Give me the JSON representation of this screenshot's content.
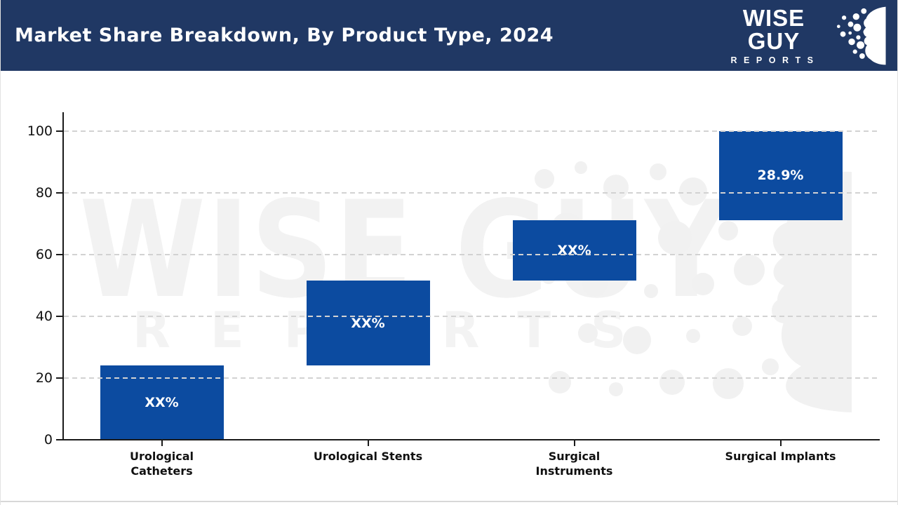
{
  "header": {
    "title": "Market Share Breakdown, By Product Type, 2024",
    "bg_color": "#203864",
    "logo": {
      "line1": "WISE GUY",
      "line2": "REPORTS"
    }
  },
  "watermark": {
    "line1": "WISE GUY",
    "line2": "REPORTS"
  },
  "chart_data": {
    "type": "bar",
    "subtype": "waterfall-stacked-breakdown",
    "title": "Market Share Breakdown, By Product Type, 2024",
    "categories": [
      "Urological Catheters",
      "Urological Stents",
      "Surgical Instruments",
      "Surgical Implants"
    ],
    "category_label_lines": [
      [
        "Urological",
        "Catheters"
      ],
      [
        "Urological Stents"
      ],
      [
        "Surgical",
        "Instruments"
      ],
      [
        "Surgical Implants"
      ]
    ],
    "segments": [
      {
        "category": "Urological Catheters",
        "start": 0,
        "end": 24.0,
        "value": 24.0,
        "label": "XX%"
      },
      {
        "category": "Urological Stents",
        "start": 24.0,
        "end": 51.5,
        "value": 27.5,
        "label": "XX%"
      },
      {
        "category": "Surgical Instruments",
        "start": 51.5,
        "end": 71.1,
        "value": 19.6,
        "label": "XX%"
      },
      {
        "category": "Surgical Implants",
        "start": 71.1,
        "end": 100.0,
        "value": 28.9,
        "label": "28.9%"
      }
    ],
    "yticks": [
      0,
      20,
      40,
      60,
      80,
      100
    ],
    "ylim": [
      0,
      106
    ],
    "xlabel": "",
    "ylabel": "",
    "grid": "horizontal-dashed",
    "legend": "none",
    "bar_color": "#0c4ba0",
    "bar_label_color": "#ffffff",
    "grid_color": "#d2d2d2",
    "axis_color": "#1a1a1a",
    "watermark_color": "#f2f2f2"
  }
}
